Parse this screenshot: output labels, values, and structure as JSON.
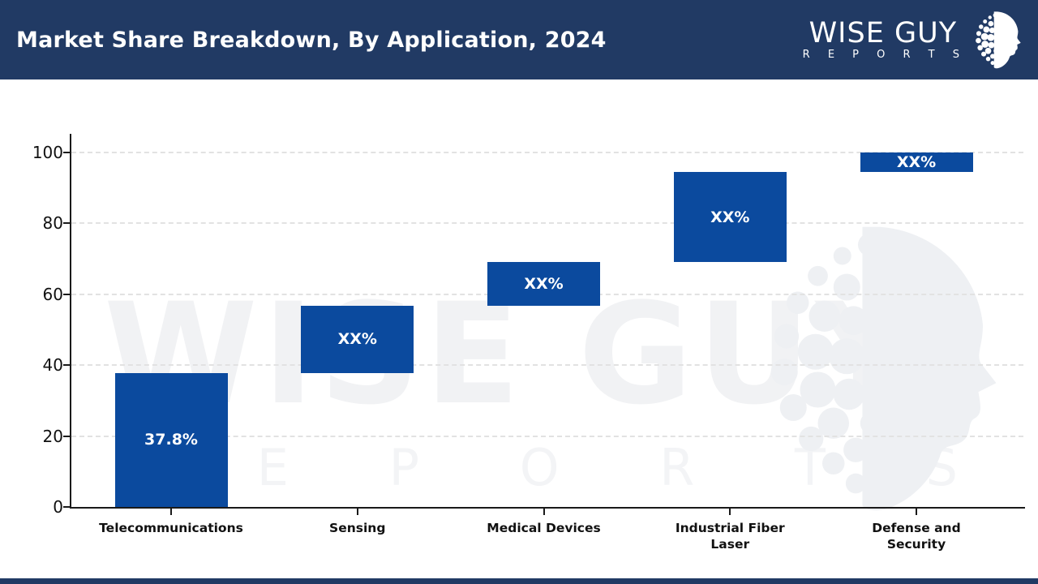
{
  "header": {
    "title": "Market Share Breakdown, By Application, 2024",
    "brand_line1": "WISE GUY",
    "brand_line2": "R E P O R T S",
    "bg_color": "#213a64"
  },
  "watermark": {
    "line1": "WISE GUY",
    "line2": "R E P O R T S"
  },
  "footer": {
    "bg_color": "#213a64"
  },
  "chart_data": {
    "type": "bar",
    "subtype": "waterfall",
    "title": "Market Share Breakdown, By Application, 2024",
    "categories": [
      "Telecommunications",
      "Sensing",
      "Medical Devices",
      "Industrial Fiber\nLaser",
      "Defense and\nSecurity"
    ],
    "series": [
      {
        "name": "Market Share %",
        "segments": [
          {
            "category": "Telecommunications",
            "start": 0,
            "end": 37.8,
            "label": "37.8%"
          },
          {
            "category": "Sensing",
            "start": 37.8,
            "end": 56.8,
            "label": "XX%"
          },
          {
            "category": "Medical Devices",
            "start": 56.8,
            "end": 69.1,
            "label": "XX%"
          },
          {
            "category": "Industrial Fiber Laser",
            "start": 69.1,
            "end": 94.5,
            "label": "XX%"
          },
          {
            "category": "Defense and Security",
            "start": 94.5,
            "end": 100,
            "label": "XX%"
          }
        ]
      }
    ],
    "xlabel": "",
    "ylabel": "",
    "ylim": [
      0,
      105
    ],
    "yticks": [
      0,
      20,
      40,
      60,
      80,
      100
    ],
    "grid": "horizontal-dashed",
    "legend": "none",
    "bar_color": "#0b4a9e",
    "bar_label_color": "#ffffff"
  }
}
